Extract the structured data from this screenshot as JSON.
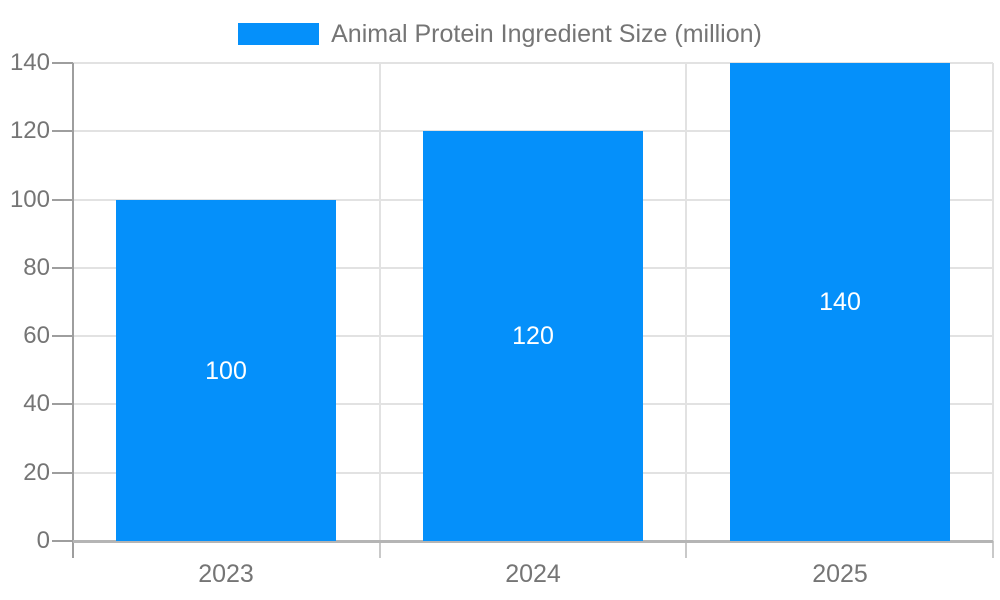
{
  "legend": {
    "label": "Animal Protein Ingredient Size (million)"
  },
  "colors": {
    "bar": "#0590fa",
    "axis_text": "#757575",
    "value_label": "#ffffff",
    "grid": "#e2e2e2",
    "axis_line": "#9e9e9e",
    "baseline": "#b5b5b5",
    "outer_tick": "#c9c9c9"
  },
  "chart_data": {
    "type": "bar",
    "categories": [
      "2023",
      "2024",
      "2025"
    ],
    "values": [
      100,
      120,
      140
    ],
    "series": [
      {
        "name": "Animal Protein Ingredient Size (million)",
        "values": [
          100,
          120,
          140
        ]
      }
    ],
    "data_labels": [
      "100",
      "120",
      "140"
    ],
    "title": "",
    "xlabel": "",
    "ylabel": "",
    "ylim": [
      0,
      140
    ],
    "yticks": [
      0,
      20,
      40,
      60,
      80,
      100,
      120,
      140
    ],
    "grid": true,
    "legend_position": "top-center",
    "bar_label_position": "inside-center"
  }
}
